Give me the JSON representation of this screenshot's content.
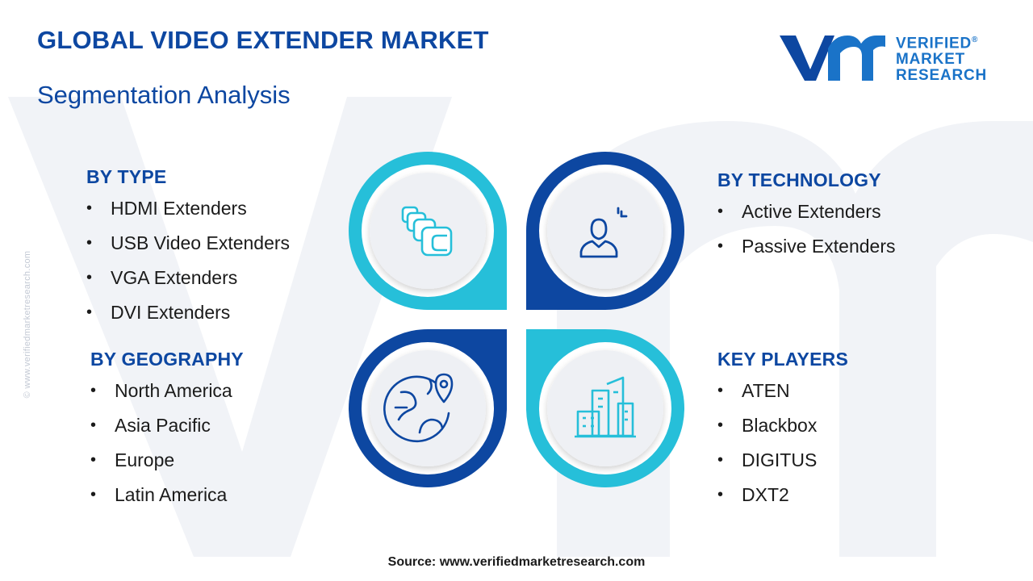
{
  "header": {
    "title": "GLOBAL VIDEO EXTENDER MARKET",
    "subtitle": "Segmentation Analysis"
  },
  "logo": {
    "line1": "VERIFIED",
    "line2": "MARKET",
    "line3": "RESEARCH",
    "registered": "®"
  },
  "side_watermark": "© www.verifiedmarketresearch.com",
  "segments": {
    "type": {
      "heading": "BY TYPE",
      "items": [
        "HDMI Extenders",
        "USB Video Extenders",
        "VGA Extenders",
        "DVI Extenders"
      ]
    },
    "technology": {
      "heading": "BY TECHNOLOGY",
      "items": [
        "Active Extenders",
        "Passive Extenders"
      ]
    },
    "geography": {
      "heading": "BY GEOGRAPHY",
      "items": [
        "North America",
        "Asia Pacific",
        "Europe",
        "Latin America"
      ]
    },
    "key_players": {
      "heading": "KEY PLAYERS",
      "items": [
        "ATEN",
        "Blackbox",
        "DIGITUS",
        "DXT2"
      ]
    }
  },
  "icons": {
    "top_left": "layers-icon",
    "top_right": "user-icon",
    "bottom_left": "globe-location-icon",
    "bottom_right": "city-buildings-icon"
  },
  "colors": {
    "heading_blue": "#0d47a1",
    "dark_blue": "#0d47a1",
    "cyan": "#26bfd9",
    "logo_blue": "#1a73c8",
    "inner_circle": "#eef0f4"
  },
  "source": "Source: www.verifiedmarketresearch.com"
}
